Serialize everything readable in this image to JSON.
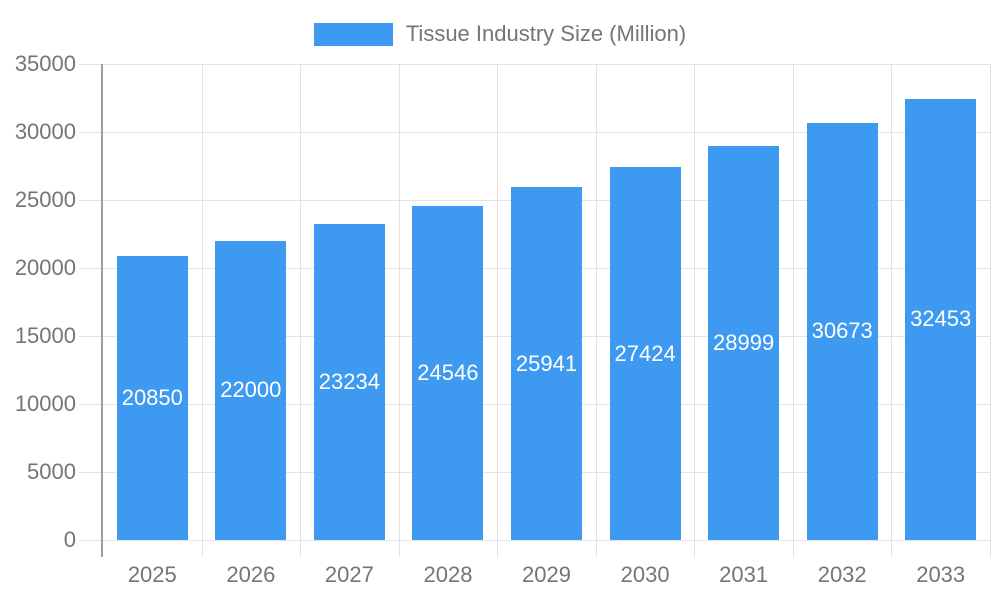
{
  "legend": {
    "label": "Tissue Industry Size (Million)"
  },
  "colors": {
    "bar": "#3D9AF0",
    "grid": "#E3E3E3",
    "axis_line": "#9E9E9E",
    "tick_text": "#757575",
    "bar_label_text": "#FFFFFF",
    "background": "#FFFFFF"
  },
  "chart_data": {
    "type": "bar",
    "title": "",
    "xlabel": "",
    "ylabel": "",
    "categories": [
      "2025",
      "2026",
      "2027",
      "2028",
      "2029",
      "2030",
      "2031",
      "2032",
      "2033"
    ],
    "series": [
      {
        "name": "Tissue Industry Size (Million)",
        "values": [
          20850,
          22000,
          23234,
          24546,
          25941,
          27424,
          28999,
          30673,
          32453
        ]
      }
    ],
    "ylim": [
      0,
      35000
    ],
    "yticks": [
      0,
      5000,
      10000,
      15000,
      20000,
      25000,
      30000,
      35000
    ],
    "grid": true,
    "legend_position": "top",
    "value_labels": "inside-center-white"
  }
}
